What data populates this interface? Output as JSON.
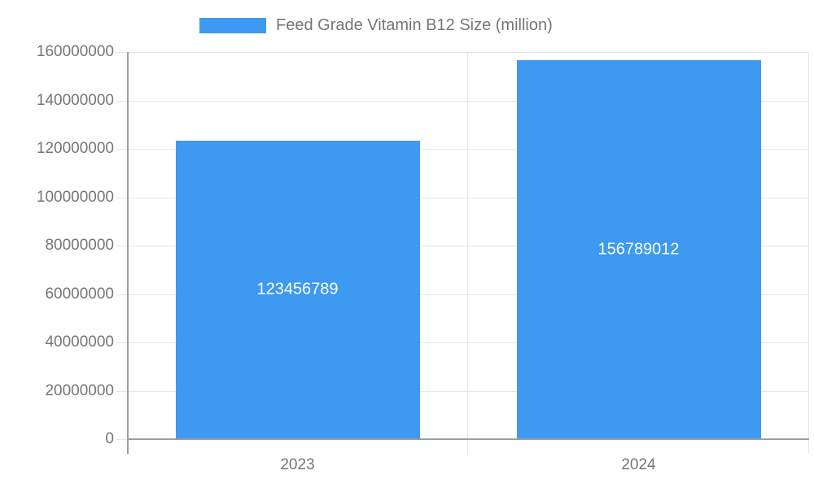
{
  "chart_data": {
    "type": "bar",
    "title": "Feed Grade Vitamin B12 Size (million)",
    "categories": [
      "2023",
      "2024"
    ],
    "series": [
      {
        "name": "Feed Grade Vitamin B12 Size (million)",
        "values": [
          123456789,
          156789012
        ]
      }
    ],
    "bar_value_labels": [
      "123456789",
      "156789012"
    ],
    "y_ticks": [
      0,
      20000000,
      40000000,
      60000000,
      80000000,
      100000000,
      120000000,
      140000000,
      160000000
    ],
    "y_tick_labels": [
      "0",
      "20000000",
      "40000000",
      "60000000",
      "80000000",
      "100000000",
      "120000000",
      "140000000",
      "160000000"
    ],
    "ylim": [
      0,
      160000000
    ],
    "xlabel": "",
    "ylabel": "",
    "grid": true,
    "legend_position": "top",
    "colors": {
      "bar": "#3d9af0",
      "axis_line": "#9e9e9e",
      "gridline": "#e6e6e6",
      "tick_text": "#757575",
      "legend_text": "#757575",
      "bar_label_text": "#ffffff",
      "background": "#ffffff"
    }
  }
}
